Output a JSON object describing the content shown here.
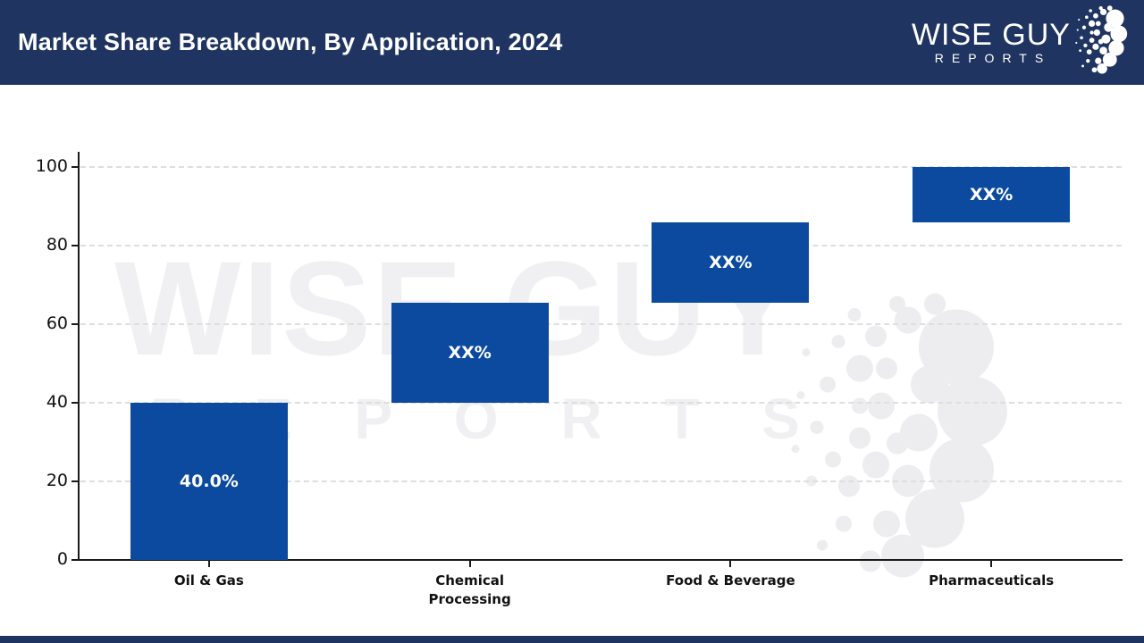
{
  "header": {
    "title": "Market Share Breakdown, By Application, 2024",
    "logo_line1": "WISE GUY",
    "logo_line2": "REPORTS"
  },
  "watermark": {
    "line1": "WISE GUY",
    "line2": "R E P O R T S"
  },
  "chart_data": {
    "type": "bar",
    "subtype": "floating-waterfall",
    "title": "Market Share Breakdown, By Application, 2024",
    "categories": [
      "Oil & Gas",
      "Chemical\nProcessing",
      "Food & Beverage",
      "Pharmaceuticals"
    ],
    "segments": [
      {
        "category": "Oil & Gas",
        "from": 0,
        "to": 40,
        "label": "40.0%"
      },
      {
        "category": "Chemical Processing",
        "from": 40,
        "to": 65.5,
        "label": "XX%"
      },
      {
        "category": "Food & Beverage",
        "from": 65.5,
        "to": 86,
        "label": "XX%"
      },
      {
        "category": "Pharmaceuticals",
        "from": 86,
        "to": 100,
        "label": "XX%"
      }
    ],
    "xlabel": "",
    "ylabel": "",
    "ylim": [
      0,
      100
    ],
    "yticks": [
      0,
      20,
      40,
      60,
      80,
      100
    ],
    "grid": {
      "horizontal": true,
      "style": "dashed",
      "color": "#dedede"
    },
    "legend": "none",
    "bar_color": "#0b4a9e",
    "bar_label_color": "#ffffff",
    "axis_color": "#1a1a1a"
  },
  "colors": {
    "header_bg": "#1f3461",
    "card_bg": "#ffffff",
    "bar": "#0b4a9e",
    "watermark": "#f0f0f2"
  }
}
